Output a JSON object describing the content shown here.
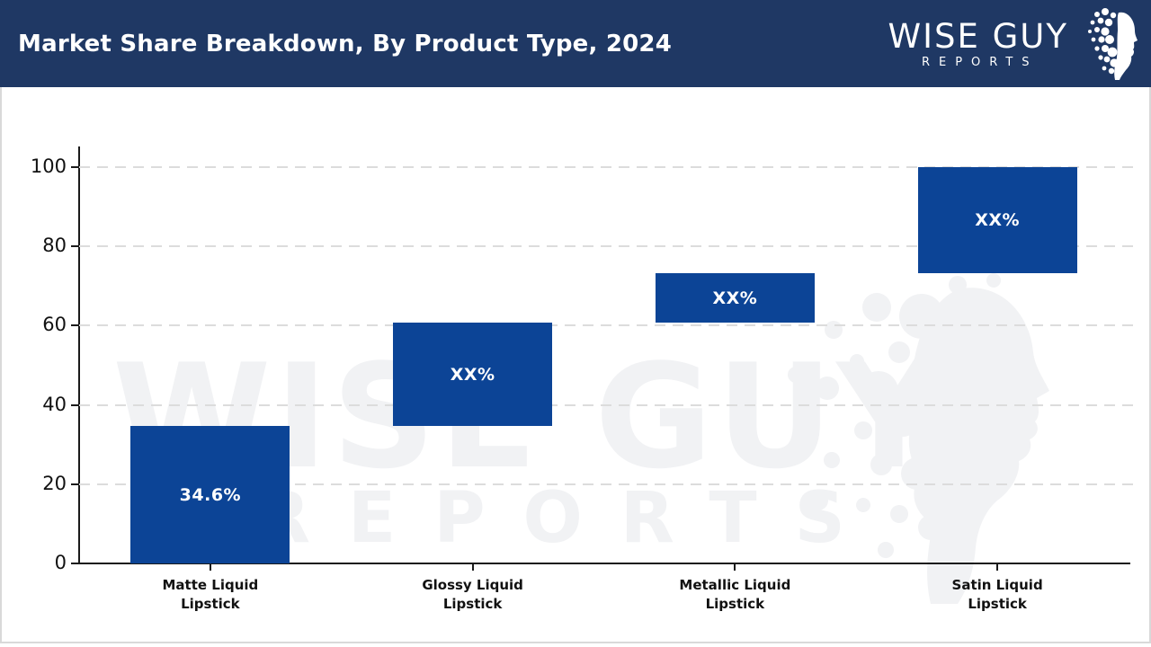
{
  "header": {
    "title": "Market Share Breakdown, By Product Type, 2024",
    "logo": {
      "brand_line1": "WISE GUY",
      "brand_line2": "REPORTS",
      "face_icon": "dotted-head-profile"
    }
  },
  "watermark": {
    "line1": "WISE GUY",
    "line2": "REPORTS",
    "face_icon": "dotted-head-profile"
  },
  "colors": {
    "header_bg": "#1f3864",
    "bar": "#0c4496",
    "grid": "#dcdcdc",
    "axis": "#1a1a1a",
    "text": "#111111",
    "bar_label": "#ffffff",
    "watermark": "#f1f2f4"
  },
  "chart_data": {
    "type": "bar",
    "subtype": "waterfall",
    "title": "Market Share Breakdown, By Product Type, 2024",
    "categories": [
      "Matte Liquid Lipstick",
      "Glossy Liquid Lipstick",
      "Metallic Liquid Lipstick",
      "Satin Liquid Lipstick"
    ],
    "bars": [
      {
        "category": "Matte Liquid Lipstick",
        "base": 0,
        "top": 34.6,
        "label": "34.6%"
      },
      {
        "category": "Glossy Liquid Lipstick",
        "base": 34.6,
        "top": 60.8,
        "label": "XX%"
      },
      {
        "category": "Metallic Liquid Lipstick",
        "base": 60.8,
        "top": 73.2,
        "label": "XX%"
      },
      {
        "category": "Satin Liquid Lipstick",
        "base": 73.2,
        "top": 100,
        "label": "XX%"
      }
    ],
    "yticks": [
      0,
      20,
      40,
      60,
      80,
      100
    ],
    "ylim": [
      0,
      100
    ],
    "xlabel": "",
    "ylabel": "",
    "grid": "horizontal-dashed",
    "legend": "none"
  }
}
